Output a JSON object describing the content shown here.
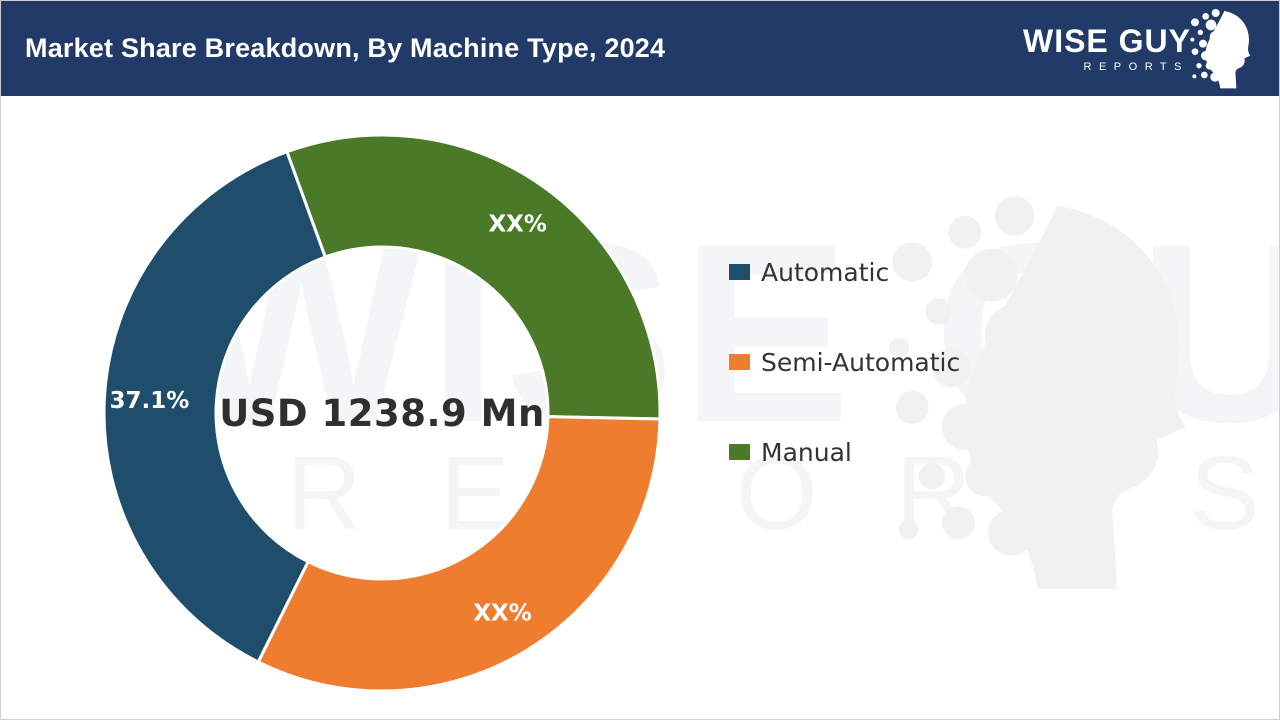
{
  "header": {
    "title": "Market Share Breakdown, By Machine Type, 2024",
    "bg_color": "#213A67",
    "logo": {
      "line1": "WISE GUY",
      "line2": "REPORTS"
    }
  },
  "watermark": {
    "line1": "WISE GUY",
    "line2": "REPORTS"
  },
  "chart_data": {
    "type": "pie",
    "subtype": "donut",
    "title": "Market Share Breakdown, By Machine Type, 2024",
    "center_label": "USD 1238.9 Mn",
    "start_angle_deg": 110,
    "direction": "clockwise",
    "outer_radius_px": 278,
    "inner_radius_px": 166,
    "label_radius_px": 233,
    "gap_color": "#ffffff",
    "slices": [
      {
        "name": "Manual",
        "value": 30.9,
        "display_label": "XX%",
        "color": "#4A7A28"
      },
      {
        "name": "Semi-Automatic",
        "value": 32.0,
        "display_label": "XX%",
        "color": "#EE7D2F"
      },
      {
        "name": "Automatic",
        "value": 37.1,
        "display_label": "37.1%",
        "color": "#1F4E6D"
      }
    ],
    "legend_position": "right"
  },
  "legend": {
    "items": [
      {
        "label": "Automatic",
        "color": "#1F4E6D"
      },
      {
        "label": "Semi-Automatic",
        "color": "#EE7D2F"
      },
      {
        "label": "Manual",
        "color": "#4A7A28"
      }
    ]
  }
}
